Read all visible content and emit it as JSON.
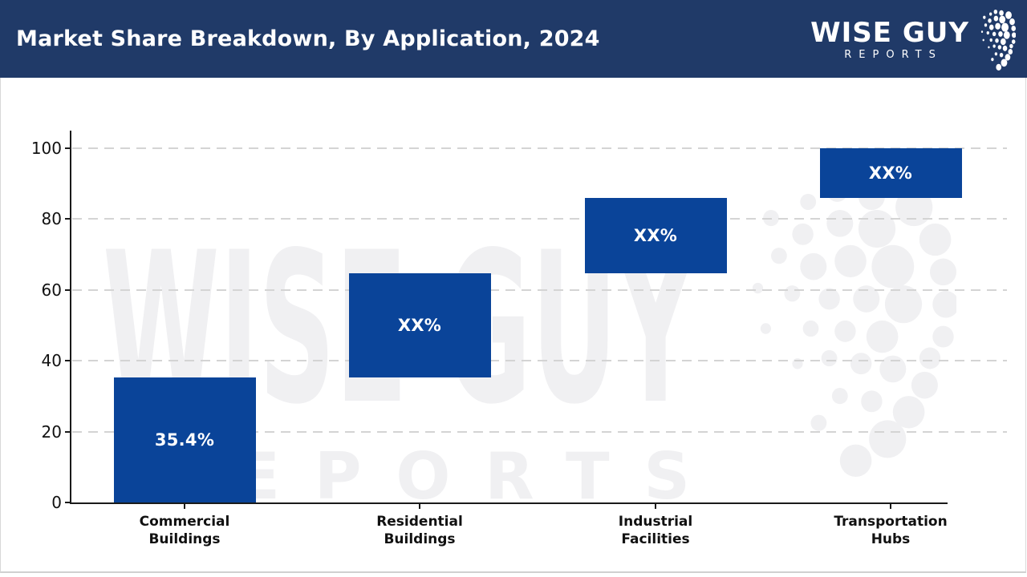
{
  "header": {
    "title": "Market Share Breakdown, By Application, 2024",
    "logo": {
      "line1": "WISE GUY",
      "line2": "REPORTS"
    }
  },
  "watermark": {
    "line1": "WISE GUY",
    "line2": "REPORTS"
  },
  "chart_data": {
    "type": "bar",
    "subtype": "waterfall-floating-bars",
    "title": "Market Share Breakdown, By Application, 2024",
    "categories": [
      "Commercial\nBuildings",
      "Residential\nBuildings",
      "Industrial\nFacilities",
      "Transportation\nHubs"
    ],
    "segments": [
      {
        "category": "Commercial Buildings",
        "start": 0,
        "end": 35.4,
        "label": "35.4%"
      },
      {
        "category": "Residential Buildings",
        "start": 35.4,
        "end": 64.8,
        "label": "XX%"
      },
      {
        "category": "Industrial Facilities",
        "start": 64.8,
        "end": 86.0,
        "label": "XX%"
      },
      {
        "category": "Transportation Hubs",
        "start": 86.0,
        "end": 100.0,
        "label": "XX%"
      }
    ],
    "y_ticks": [
      0,
      20,
      40,
      60,
      80,
      100
    ],
    "ylim": [
      0,
      105
    ],
    "xlabel": "",
    "ylabel": "",
    "grid": "horizontal-dashed",
    "legend": "none",
    "bar_color": "#0a4499",
    "bar_label_color": "#ffffff",
    "axis_color": "#1a1a1a",
    "grid_color": "#d4d4d4",
    "header_color": "#203a68",
    "watermark_color": "#f0f0f2"
  }
}
